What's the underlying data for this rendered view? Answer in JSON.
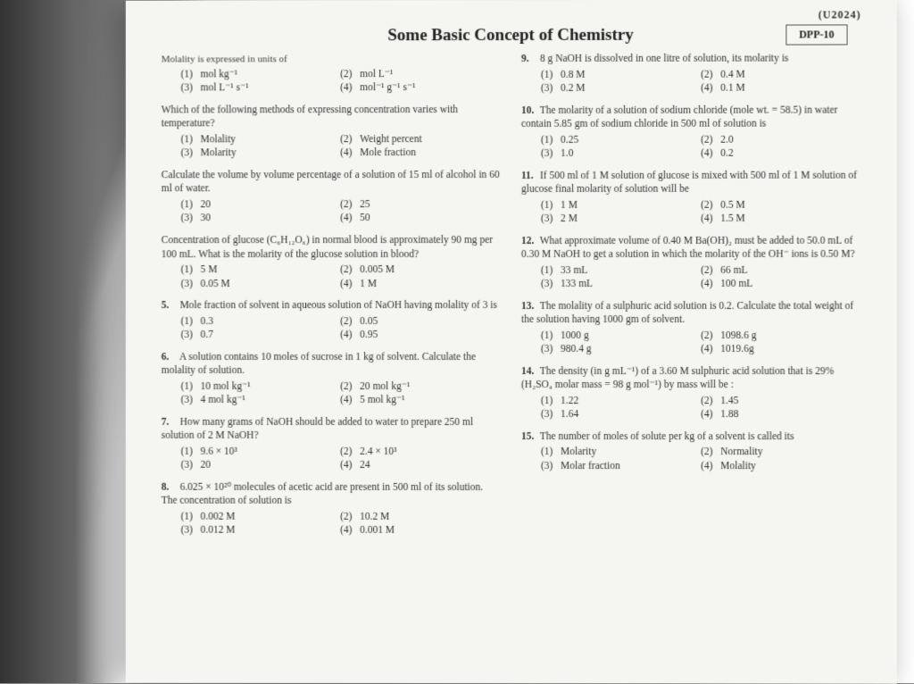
{
  "header": {
    "topcode": "(U2024)",
    "title": "Some Basic Concept of Chemistry",
    "dpp": "DPP-10"
  },
  "left": {
    "q1": {
      "intro": "Molality is expressed in units of",
      "o1": "mol kg⁻¹",
      "o2": "mol L⁻¹",
      "o3": "mol L⁻¹ s⁻¹",
      "o4": "mol⁻¹ g⁻¹ s⁻¹"
    },
    "q2": {
      "text": "Which of the following methods of expressing concentration varies with temperature?",
      "o1": "Molality",
      "o2": "Weight percent",
      "o3": "Molarity",
      "o4": "Mole fraction"
    },
    "q3": {
      "text": "Calculate the volume by volume percentage of a solution of 15 ml of alcohol in 60 ml of water.",
      "o1": "20",
      "o2": "25",
      "o3": "30",
      "o4": "50"
    },
    "q4": {
      "text": "Concentration of glucose (C₆H₁₂O₆) in normal blood is approximately 90 mg per 100 mL. What is the molarity of the glucose solution in blood?",
      "o1": "5 M",
      "o2": "0.005 M",
      "o3": "0.05 M",
      "o4": "1 M"
    },
    "q5": {
      "num": "5.",
      "text": "Mole fraction of solvent in aqueous solution of NaOH having molality of 3 is",
      "o1": "0.3",
      "o2": "0.05",
      "o3": "0.7",
      "o4": "0.95"
    },
    "q6": {
      "num": "6.",
      "text": "A solution contains 10 moles of sucrose in 1 kg of solvent. Calculate the molality of solution.",
      "o1": "10 mol kg⁻¹",
      "o2": "20 mol kg⁻¹",
      "o3": "4 mol kg⁻¹",
      "o4": "5 mol kg⁻¹"
    },
    "q7": {
      "num": "7.",
      "text": "How many grams of NaOH should be added to water to prepare 250 ml solution of 2 M NaOH?",
      "o1": "9.6 × 10³",
      "o2": "2.4 × 10³",
      "o3": "20",
      "o4": "24"
    },
    "q8": {
      "num": "8.",
      "text": "6.025 × 10²⁰ molecules of acetic acid are present in 500 ml of its solution. The concentration of solution is",
      "o1": "0.002 M",
      "o2": "10.2 M",
      "o3": "0.012 M",
      "o4": "0.001 M"
    }
  },
  "right": {
    "q9": {
      "num": "9.",
      "text": "8 g NaOH is dissolved in one litre of solution, its molarity is",
      "o1": "0.8 M",
      "o2": "0.4 M",
      "o3": "0.2 M",
      "o4": "0.1 M"
    },
    "q10": {
      "num": "10.",
      "text": "The molarity of a solution of sodium chloride (mole wt. = 58.5) in water contain 5.85 gm of sodium chloride in 500 ml of solution is",
      "o1": "0.25",
      "o2": "2.0",
      "o3": "1.0",
      "o4": "0.2"
    },
    "q11": {
      "num": "11.",
      "text": "If 500 ml of 1 M solution of glucose is mixed with 500 ml of 1 M solution of glucose final molarity of solution will be",
      "o1": "1 M",
      "o2": "0.5 M",
      "o3": "2 M",
      "o4": "1.5 M"
    },
    "q12": {
      "num": "12.",
      "text": "What approximate volume of 0.40 M Ba(OH)₂ must be added to 50.0 mL of 0.30 M NaOH to get a solution in which the molarity of the OH⁻ ions is 0.50 M?",
      "o1": "33 mL",
      "o2": "66 mL",
      "o3": "133 mL",
      "o4": "100 mL"
    },
    "q13": {
      "num": "13.",
      "text": "The molality of a sulphuric acid solution is 0.2. Calculate the total weight of the solution having 1000 gm of solvent.",
      "o1": "1000 g",
      "o2": "1098.6 g",
      "o3": "980.4 g",
      "o4": "1019.6g"
    },
    "q14": {
      "num": "14.",
      "text": "The density (in g mL⁻¹) of a 3.60 M sulphuric acid solution that is 29% (H₂SO₄ molar mass = 98 g mol⁻¹) by mass will be :",
      "o1": "1.22",
      "o2": "1.45",
      "o3": "1.64",
      "o4": "1.88"
    },
    "q15": {
      "num": "15.",
      "text": "The number of moles of solute per kg of a solvent is called its",
      "o1": "Molarity",
      "o2": "Normality",
      "o3": "Molar fraction",
      "o4": "Molality"
    }
  }
}
